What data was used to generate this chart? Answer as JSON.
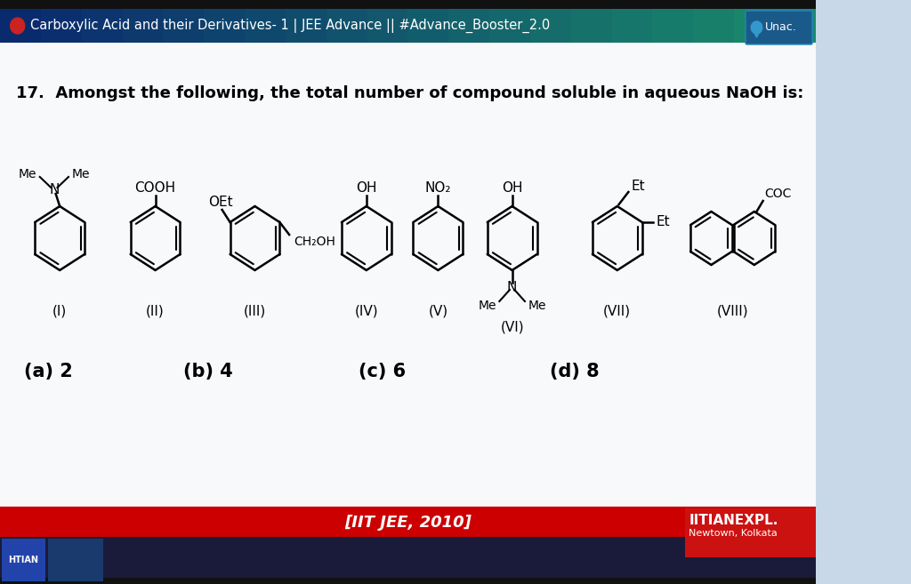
{
  "title_bar_text": "Carboxylic Acid and their Derivatives- 1 | JEE Advance || #Advance_Booster_2.0",
  "title_dot_color": "#cc2222",
  "question_text": "17.  Amongst the following, the total number of compound soluble in aqueous NaOH is:",
  "bg_top_color": "#c8d8e8",
  "bg_bottom_color": "#dce8f0",
  "content_bg": "#dce8f0",
  "compound_labels": [
    "(I)",
    "(II)",
    "(III)",
    "(IV)",
    "(V)",
    "(VI)",
    "(VII)",
    "(VIII)"
  ],
  "options": [
    "(a) 2",
    "(b) 4",
    "(c) 6",
    "(d) 8"
  ],
  "footer_text": "[IIT JEE, 2010]",
  "footer_bar_color": "#cc0000",
  "iitianexpl_bg": "#cc1111",
  "iitianexpl_text": "IITIANEXPL.",
  "iitianexpl_sub": "Newtown, Kolkata",
  "toolbar_bg": "#1a1a3a",
  "unac_text": "Unac."
}
